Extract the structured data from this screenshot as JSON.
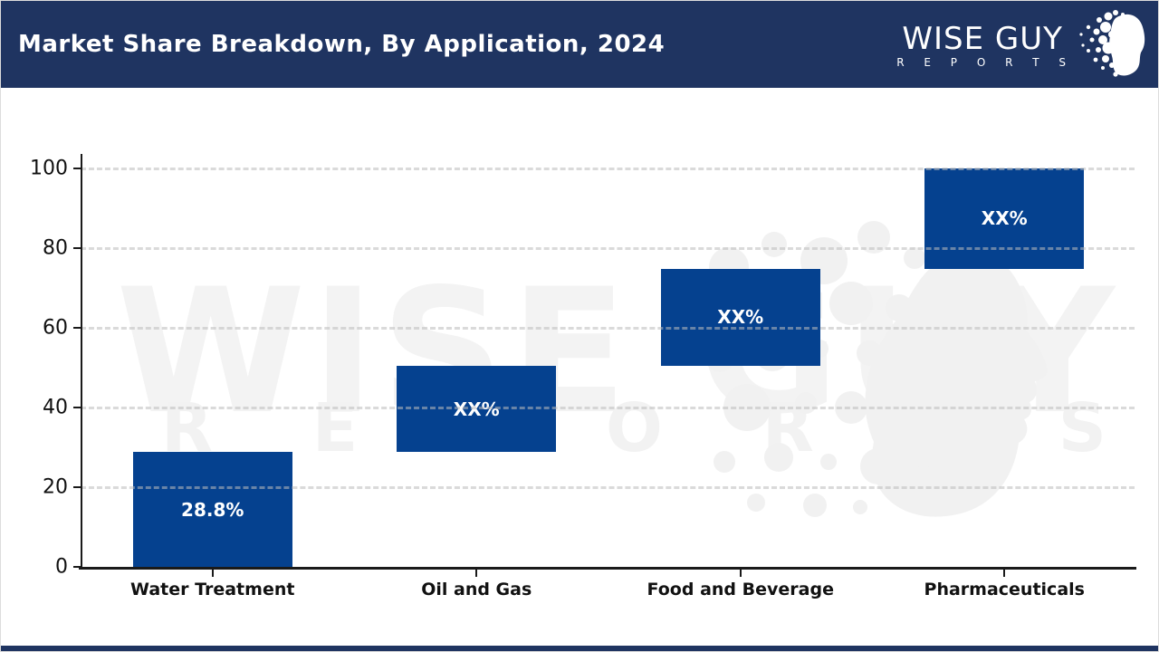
{
  "header": {
    "title": "Market Share Breakdown, By Application, 2024"
  },
  "logo": {
    "line1": "WISE GUY",
    "line2": "R E P O R T S"
  },
  "watermark": {
    "big_text": "WISE GUY",
    "sub_text": "R E P O R T S"
  },
  "colors": {
    "header_navy": "#1F3461",
    "bar_blue": "#05418F",
    "bar_label_white": "#FFFFFF",
    "watermark_gray": "#F2F2F2",
    "gridline_gray": "#BBBBBB"
  },
  "chart_data": {
    "type": "bar",
    "subtype": "waterfall",
    "title": "Market Share Breakdown, By Application, 2024",
    "categories": [
      "Water Treatment",
      "Oil and Gas",
      "Food and Beverage",
      "Pharmaceuticals"
    ],
    "segments": [
      {
        "category": "Water Treatment",
        "start": 0,
        "end": 28.8,
        "label": "28.8%"
      },
      {
        "category": "Oil and Gas",
        "start": 28.8,
        "end": 50.5,
        "label": "XX%"
      },
      {
        "category": "Food and Beverage",
        "start": 50.5,
        "end": 74.8,
        "label": "XX%"
      },
      {
        "category": "Pharmaceuticals",
        "start": 74.8,
        "end": 100,
        "label": "XX%"
      }
    ],
    "xlabel": "",
    "ylabel": "",
    "ylim": [
      0,
      100
    ],
    "yticks": [
      0,
      20,
      40,
      60,
      80,
      100
    ],
    "grid": "dashed horizontal",
    "legend": "none",
    "bar_color": "#05418F",
    "label_color": "#FFFFFF"
  }
}
